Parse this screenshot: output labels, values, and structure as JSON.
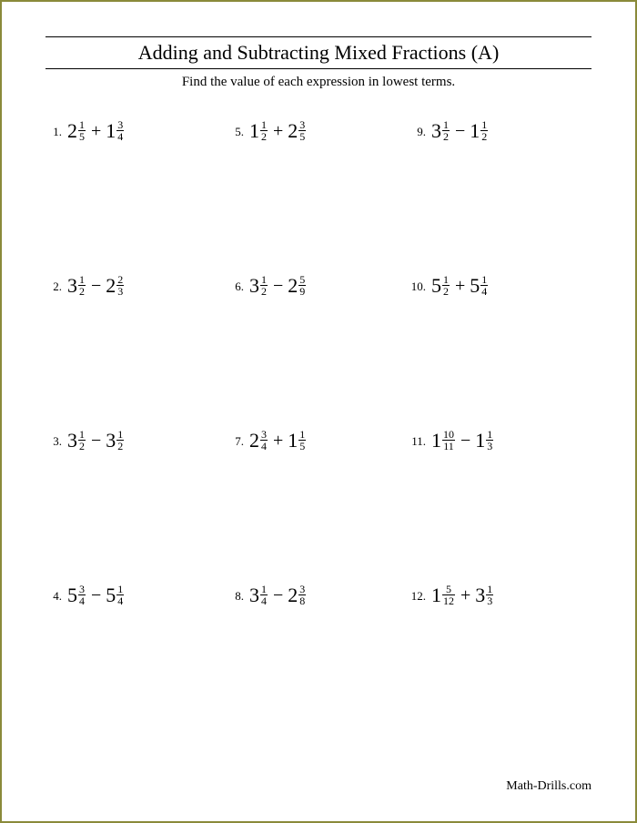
{
  "title": "Adding and Subtracting Mixed Fractions (A)",
  "subtitle": "Find the value of each expression in lowest terms.",
  "footer": "Math-Drills.com",
  "problems": [
    {
      "num": "1.",
      "a_whole": "2",
      "a_n": "1",
      "a_d": "5",
      "op": "+",
      "b_whole": "1",
      "b_n": "3",
      "b_d": "4"
    },
    {
      "num": "5.",
      "a_whole": "1",
      "a_n": "1",
      "a_d": "2",
      "op": "+",
      "b_whole": "2",
      "b_n": "3",
      "b_d": "5"
    },
    {
      "num": "9.",
      "a_whole": "3",
      "a_n": "1",
      "a_d": "2",
      "op": "−",
      "b_whole": "1",
      "b_n": "1",
      "b_d": "2"
    },
    {
      "num": "2.",
      "a_whole": "3",
      "a_n": "1",
      "a_d": "2",
      "op": "−",
      "b_whole": "2",
      "b_n": "2",
      "b_d": "3"
    },
    {
      "num": "6.",
      "a_whole": "3",
      "a_n": "1",
      "a_d": "2",
      "op": "−",
      "b_whole": "2",
      "b_n": "5",
      "b_d": "9"
    },
    {
      "num": "10.",
      "a_whole": "5",
      "a_n": "1",
      "a_d": "2",
      "op": "+",
      "b_whole": "5",
      "b_n": "1",
      "b_d": "4"
    },
    {
      "num": "3.",
      "a_whole": "3",
      "a_n": "1",
      "a_d": "2",
      "op": "−",
      "b_whole": "3",
      "b_n": "1",
      "b_d": "2"
    },
    {
      "num": "7.",
      "a_whole": "2",
      "a_n": "3",
      "a_d": "4",
      "op": "+",
      "b_whole": "1",
      "b_n": "1",
      "b_d": "5"
    },
    {
      "num": "11.",
      "a_whole": "1",
      "a_n": "10",
      "a_d": "11",
      "op": "−",
      "b_whole": "1",
      "b_n": "1",
      "b_d": "3"
    },
    {
      "num": "4.",
      "a_whole": "5",
      "a_n": "3",
      "a_d": "4",
      "op": "−",
      "b_whole": "5",
      "b_n": "1",
      "b_d": "4"
    },
    {
      "num": "8.",
      "a_whole": "3",
      "a_n": "1",
      "a_d": "4",
      "op": "−",
      "b_whole": "2",
      "b_n": "3",
      "b_d": "8"
    },
    {
      "num": "12.",
      "a_whole": "1",
      "a_n": "5",
      "a_d": "12",
      "op": "+",
      "b_whole": "3",
      "b_n": "1",
      "b_d": "3"
    }
  ]
}
